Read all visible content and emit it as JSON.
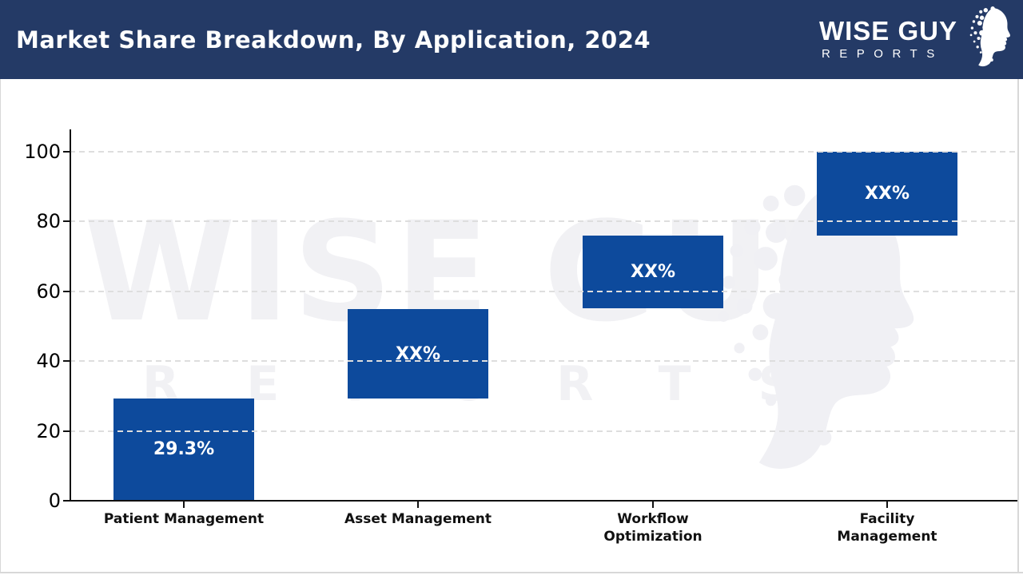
{
  "header": {
    "title": "Market Share Breakdown, By Application, 2024",
    "logo": {
      "line1": "WISE GUY",
      "line2": "REPORTS"
    }
  },
  "watermark": {
    "line1": "WISE GUY",
    "line2": "REPORTS"
  },
  "colors": {
    "header_bg": "#243a66",
    "bar": "#0d4a9c",
    "bar_label": "#ffffff",
    "gridline": "#dedede",
    "axis": "#111111",
    "watermark": "#f1f1f4"
  },
  "chart_data": {
    "type": "bar",
    "subtype": "waterfall",
    "title": "Market Share Breakdown, By Application, 2024",
    "xlabel": "",
    "ylabel": "",
    "categories": [
      "Patient Management",
      "Asset Management",
      "Workflow\nOptimization",
      "Facility\nManagement"
    ],
    "segments": [
      {
        "category": "Patient Management",
        "start": 0,
        "end": 29.3,
        "label": "29.3%"
      },
      {
        "category": "Asset Management",
        "start": 29.3,
        "end": 54.8,
        "label": "XX%"
      },
      {
        "category": "Workflow Optimization",
        "start": 55.0,
        "end": 75.9,
        "label": "XX%"
      },
      {
        "category": "Facility Management",
        "start": 76.0,
        "end": 100.0,
        "label": "XX%"
      }
    ],
    "yticks": [
      0,
      20,
      40,
      60,
      80,
      100
    ],
    "ylim": [
      0,
      106
    ],
    "grid": "dashed-horizontal",
    "legend": "none"
  }
}
